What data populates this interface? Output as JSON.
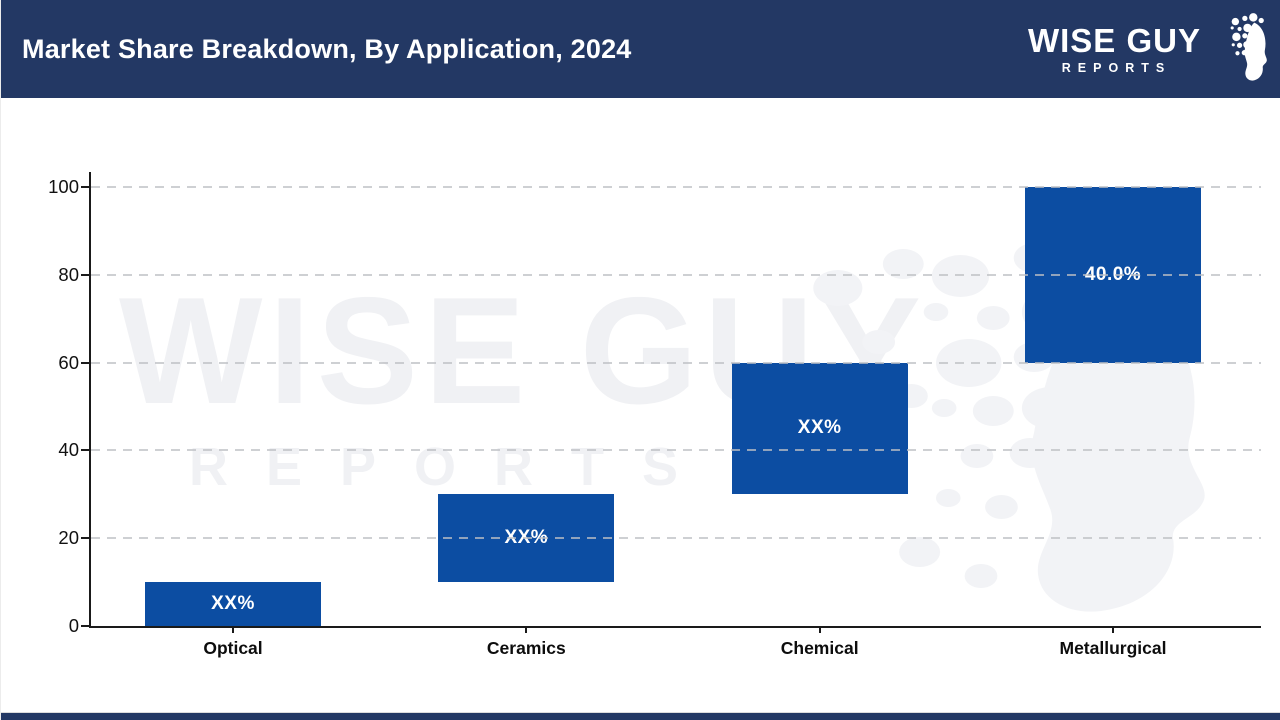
{
  "header": {
    "title": "Market Share Breakdown, By Application, 2024",
    "logo_name": "WISE GUY",
    "logo_sub": "REPORTS"
  },
  "watermark": {
    "line1": "WISE GUY",
    "line2": "REPORTS"
  },
  "colors": {
    "header_bg": "#233864",
    "footer_bg": "#233864",
    "bar": "#0c4da2",
    "bar_label": "#ffffff",
    "axis": "#1a1a1a",
    "grid": "#c9c9c9",
    "watermark": "#f0f1f4",
    "watermark_face": "#f2f3f6"
  },
  "chart_data": {
    "type": "bar",
    "subtype": "floating-segment (waterfall-style market share)",
    "title": "Market Share Breakdown, By Application, 2024",
    "categories": [
      "Optical",
      "Ceramics",
      "Chemical",
      "Metallurgical"
    ],
    "bars": [
      {
        "category": "Optical",
        "start": 0,
        "end": 10,
        "label": "XX%"
      },
      {
        "category": "Ceramics",
        "start": 10,
        "end": 30,
        "label": "XX%"
      },
      {
        "category": "Chemical",
        "start": 30,
        "end": 60,
        "label": "XX%"
      },
      {
        "category": "Metallurgical",
        "start": 60,
        "end": 100,
        "label": "40.0%"
      }
    ],
    "xlabel": "",
    "ylabel": "",
    "yticks": [
      0,
      20,
      40,
      60,
      80,
      100
    ],
    "ylim": [
      0,
      103.5
    ],
    "grid": {
      "axis": "y",
      "style": "dashed",
      "drawn_over_bars": true
    },
    "legend": null,
    "bar_color": "#0c4da2"
  }
}
